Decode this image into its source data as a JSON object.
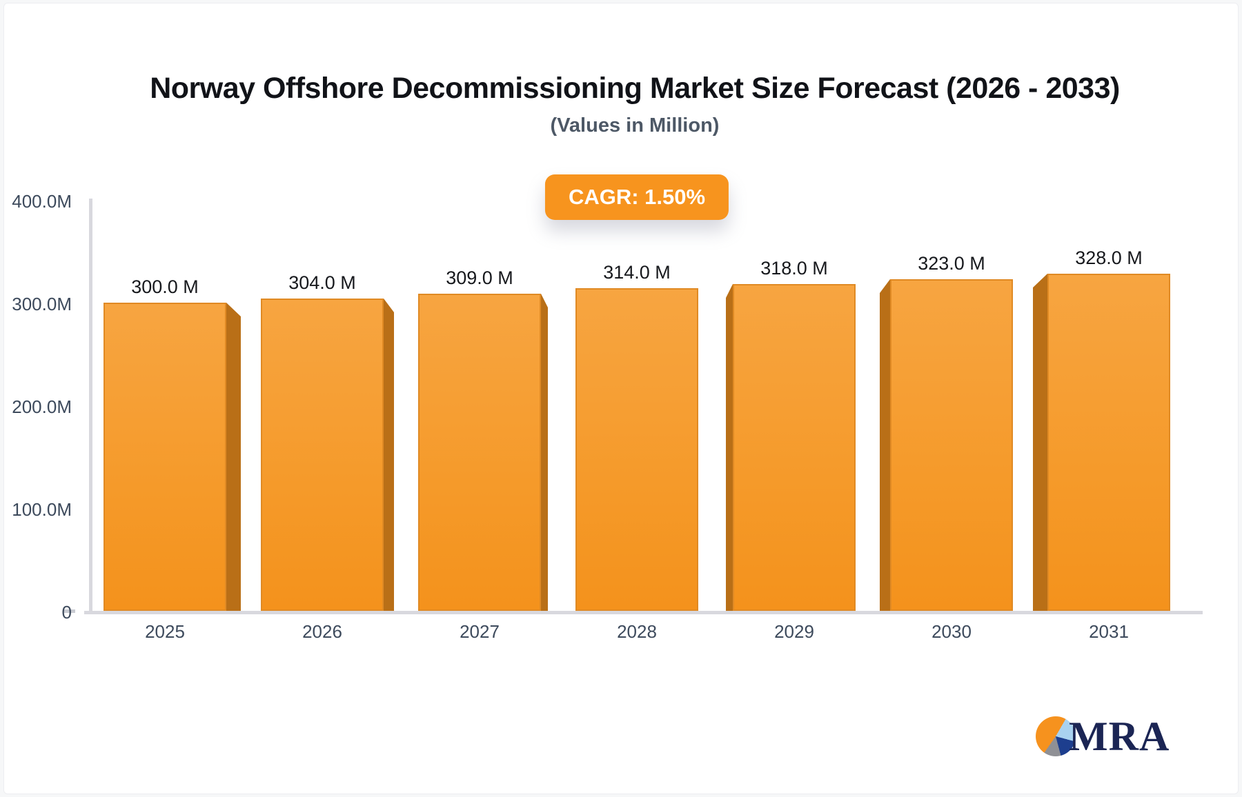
{
  "header": {
    "title": "Norway Offshore Decommissioning Market Size Forecast (2026 - 2033)",
    "subtitle": "(Values in Million)",
    "cagr_label": "CAGR: 1.50%"
  },
  "chart_data": {
    "type": "bar",
    "title": "Norway Offshore Decommissioning Market Size Forecast (2026 - 2033)",
    "subtitle": "(Values in Million)",
    "unit": "Million",
    "cagr_percent": 1.5,
    "categories": [
      "2025",
      "2026",
      "2027",
      "2028",
      "2029",
      "2030",
      "2031"
    ],
    "values": [
      300.0,
      304.0,
      309.0,
      314.0,
      318.0,
      323.0,
      328.0
    ],
    "value_labels": [
      "300.0 M",
      "304.0 M",
      "309.0 M",
      "314.0 M",
      "318.0 M",
      "323.0 M",
      "328.0 M"
    ],
    "xlabel": "",
    "ylabel": "",
    "ylim": [
      0,
      400
    ],
    "grid": "off",
    "legend": "none",
    "y_axis_ticks": [
      {
        "label": "400.0M",
        "value": 400
      },
      {
        "label": "300.0M",
        "value": 300
      },
      {
        "label": "200.0M",
        "value": 200
      },
      {
        "label": "100.0M",
        "value": 100
      },
      {
        "label": "0",
        "value": 0
      }
    ],
    "bar_style": "pseudo-3d",
    "colors": {
      "bar_top": "#f7a541",
      "bar_mid": "#f59a2a",
      "bar_bottom": "#f4921c",
      "bar_side": "#b96f17",
      "bar_stroke": "#e08a24",
      "axis": "#d8d8de",
      "tick_text": "#3d4a5c",
      "label_text": "#17191d",
      "badge_bg": "#f7941e",
      "badge_text": "#ffffff"
    }
  },
  "logo": {
    "text": "MRA",
    "pie_orange": "#f6921e",
    "pie_blue": "#a9d2ef",
    "pie_navy": "#1d3e8e",
    "pie_gray": "#8f9095"
  }
}
